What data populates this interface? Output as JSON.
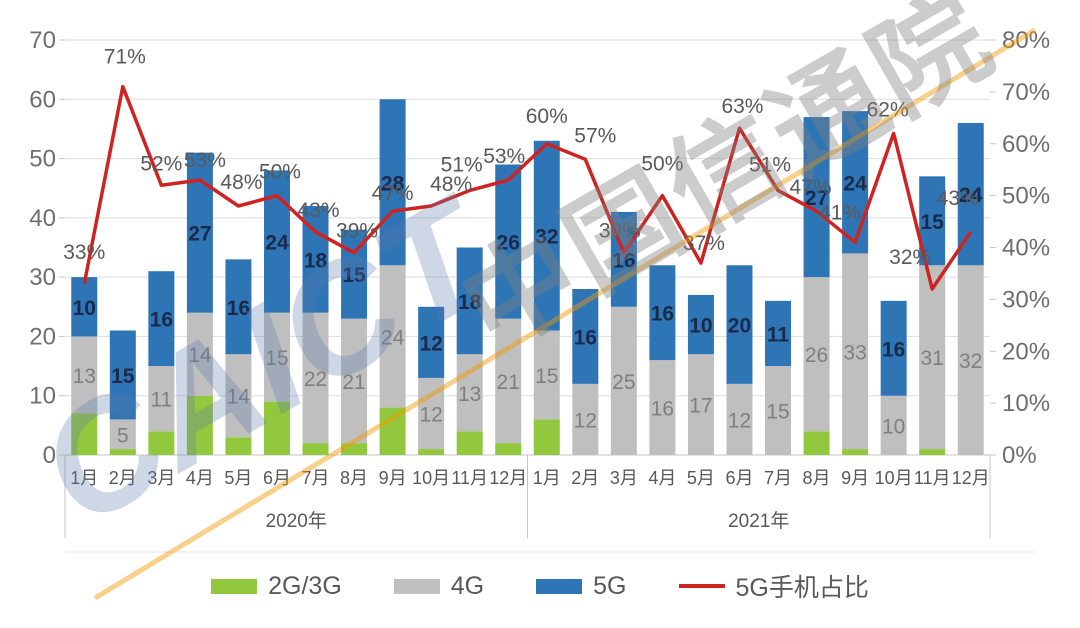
{
  "legend": {
    "items": [
      {
        "label": "2G/3G",
        "color": "#92C83E",
        "type": "swatch"
      },
      {
        "label": "4G",
        "color": "#BFBFBF",
        "type": "swatch"
      },
      {
        "label": "5G",
        "color": "#2E75B6",
        "type": "swatch"
      },
      {
        "label": "5G手机占比",
        "color": "#CE2320",
        "type": "line"
      }
    ]
  },
  "watermark": {
    "text_latin": "CAICT",
    "text_cn": "中国信通院",
    "accent_color": "#F39800"
  },
  "chart_data": {
    "type": "combo_stacked_bar_line",
    "title": "",
    "categories": [
      "1月",
      "2月",
      "3月",
      "4月",
      "5月",
      "6月",
      "7月",
      "8月",
      "9月",
      "10月",
      "11月",
      "12月",
      "1月",
      "2月",
      "3月",
      "4月",
      "5月",
      "6月",
      "7月",
      "8月",
      "9月",
      "10月",
      "11月",
      "12月"
    ],
    "year_groups": [
      {
        "label": "2020年",
        "span": 12
      },
      {
        "label": "2021年",
        "span": 12
      }
    ],
    "bar_series": [
      {
        "name": "2G/3G",
        "color": "#92C83E",
        "data_labels": false,
        "bold_labels": false,
        "label_color": "#7F7F7F",
        "values": [
          7,
          1,
          4,
          10,
          3,
          9,
          2,
          2,
          8,
          1,
          4,
          2,
          6,
          0,
          0,
          0,
          0,
          0,
          0,
          4,
          1,
          0,
          1,
          0
        ]
      },
      {
        "name": "4G",
        "color": "#BFBFBF",
        "data_labels": true,
        "bold_labels": false,
        "label_color": "#7F7F7F",
        "values": [
          13,
          5,
          11,
          14,
          14,
          15,
          22,
          21,
          24,
          12,
          13,
          21,
          15,
          12,
          25,
          16,
          17,
          12,
          15,
          26,
          33,
          10,
          31,
          32
        ]
      },
      {
        "name": "5G",
        "color": "#2E75B6",
        "data_labels": true,
        "bold_labels": true,
        "label_color": "#1B2A4A",
        "values": [
          10,
          15,
          16,
          27,
          16,
          24,
          18,
          15,
          28,
          12,
          18,
          26,
          32,
          16,
          16,
          16,
          10,
          20,
          11,
          27,
          24,
          16,
          15,
          24
        ]
      }
    ],
    "line_series": {
      "name": "5G手机占比",
      "color": "#CE2320",
      "axis": "right",
      "values_percent": [
        33,
        71,
        52,
        53,
        48,
        50,
        43,
        39,
        47,
        48,
        51,
        53,
        60,
        57,
        39,
        50,
        37,
        63,
        51,
        47,
        41,
        62,
        32,
        43
      ],
      "labels": [
        "33%",
        "71%",
        "52%",
        "53%",
        "48%",
        "50%",
        "43%",
        "39%",
        "47%",
        "48%",
        "51%",
        "53%",
        "60%",
        "57%",
        "39%",
        "50%",
        "37%",
        "63%",
        "51%",
        "47%",
        "41%",
        "62%",
        "32%",
        "43%"
      ]
    },
    "left_axis": {
      "min": 0,
      "max": 70,
      "step": 10,
      "ticks": [
        "0",
        "10",
        "20",
        "30",
        "40",
        "50",
        "60",
        "70"
      ]
    },
    "right_axis": {
      "min": 0,
      "max": 80,
      "step": 10,
      "ticks": [
        "0%",
        "10%",
        "20%",
        "30%",
        "40%",
        "50%",
        "60%",
        "70%",
        "80%"
      ]
    },
    "grid": "horizontal",
    "legend_position": "bottom"
  }
}
